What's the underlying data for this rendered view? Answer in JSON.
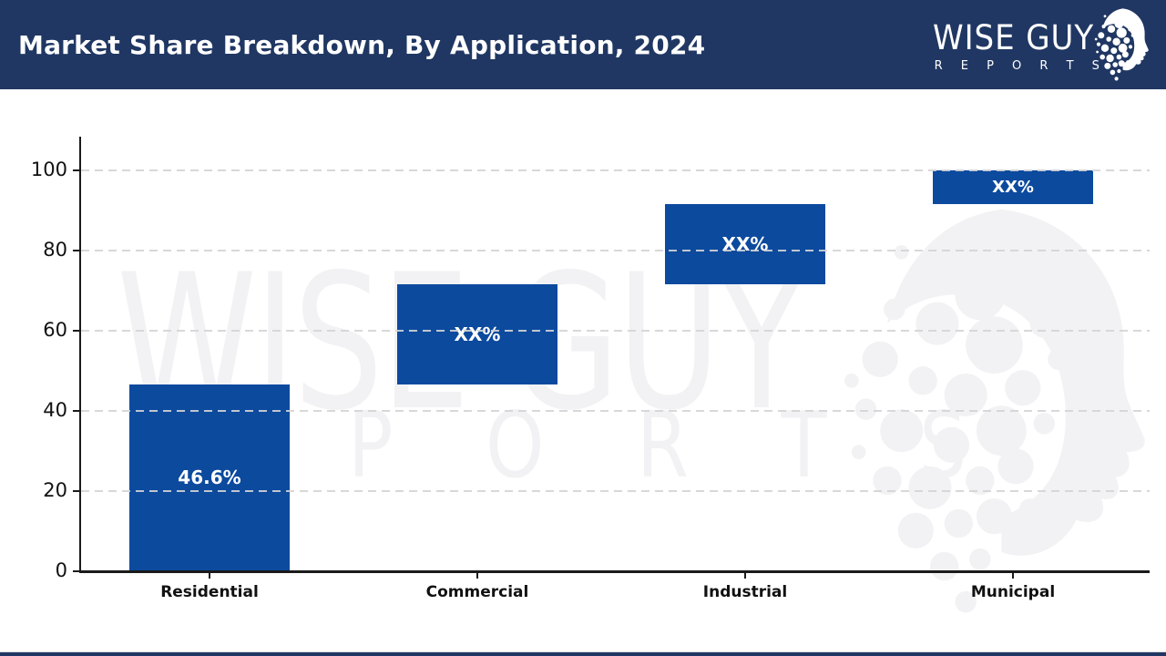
{
  "header": {
    "title": "Market Share Breakdown, By Application, 2024",
    "logo": {
      "line1": "WISE GUY",
      "line2": "R E P O R T S"
    }
  },
  "watermark": {
    "line1": "WISE GUY",
    "line2": "P O R T S"
  },
  "colors": {
    "header_background": "#203763",
    "bar": "#0c4a9e",
    "bar_label": "#ffffff",
    "gridline": "#d4d4d6",
    "axis": "#1a1a1a",
    "watermark": "#f2f2f4"
  },
  "chart_data": {
    "type": "bar",
    "subtype": "waterfall",
    "title": "Market Share Breakdown, By Application, 2024",
    "categories": [
      "Residential",
      "Commercial",
      "Industrial",
      "Municipal"
    ],
    "segments": [
      {
        "category": "Residential",
        "start": 0,
        "end": 46.6,
        "label": "46.6%"
      },
      {
        "category": "Commercial",
        "start": 46.6,
        "end": 71.6,
        "label": "XX%"
      },
      {
        "category": "Industrial",
        "start": 71.6,
        "end": 91.6,
        "label": "XX%"
      },
      {
        "category": "Municipal",
        "start": 91.6,
        "end": 100,
        "label": "XX%"
      }
    ],
    "ylim": [
      0,
      108
    ],
    "yticks": [
      0,
      20,
      40,
      60,
      80,
      100
    ],
    "grid": "horizontal-dashed",
    "legend_position": "none",
    "xlabel": "",
    "ylabel": ""
  }
}
